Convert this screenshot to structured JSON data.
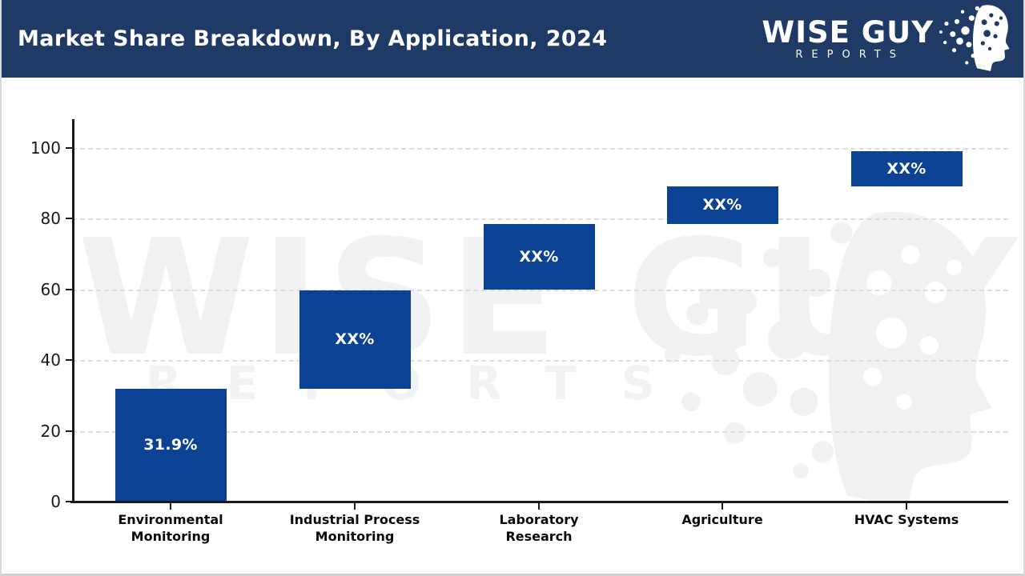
{
  "header": {
    "title": "Market Share Breakdown, By Application, 2024",
    "bg_color": "#203A66",
    "logo": {
      "line1": "WISE GUY",
      "line2": "REPORTS",
      "face_icon": "dotted-face-profile"
    }
  },
  "watermark": {
    "line1": "WISE GUY",
    "line2": "REPORTS",
    "face_icon": "dotted-face-profile"
  },
  "chart_data": {
    "type": "bar",
    "subtype": "waterfall",
    "title": "Market Share Breakdown, By Application, 2024",
    "categories": [
      "Environmental\nMonitoring",
      "Industrial Process\nMonitoring",
      "Laboratory\nResearch",
      "Agriculture",
      "HVAC Systems"
    ],
    "segments": [
      {
        "category": "Environmental Monitoring",
        "start": 0,
        "end": 31.9,
        "label": "31.9%"
      },
      {
        "category": "Industrial Process Monitoring",
        "start": 31.9,
        "end": 59.8,
        "label": "XX%"
      },
      {
        "category": "Laboratory Research",
        "start": 59.8,
        "end": 78.5,
        "label": "XX%"
      },
      {
        "category": "Agriculture",
        "start": 78.5,
        "end": 89.1,
        "label": "XX%"
      },
      {
        "category": "HVAC Systems",
        "start": 89.1,
        "end": 99.1,
        "label": "XX%"
      }
    ],
    "y_ticks": [
      0,
      20,
      40,
      60,
      80,
      100
    ],
    "ylim": [
      0,
      107
    ],
    "xlabel": "",
    "ylabel": "",
    "grid": true,
    "grid_style": "dashed",
    "legend": false,
    "bar_color": "#0B4294",
    "bar_label_color": "#FFFFFF"
  }
}
